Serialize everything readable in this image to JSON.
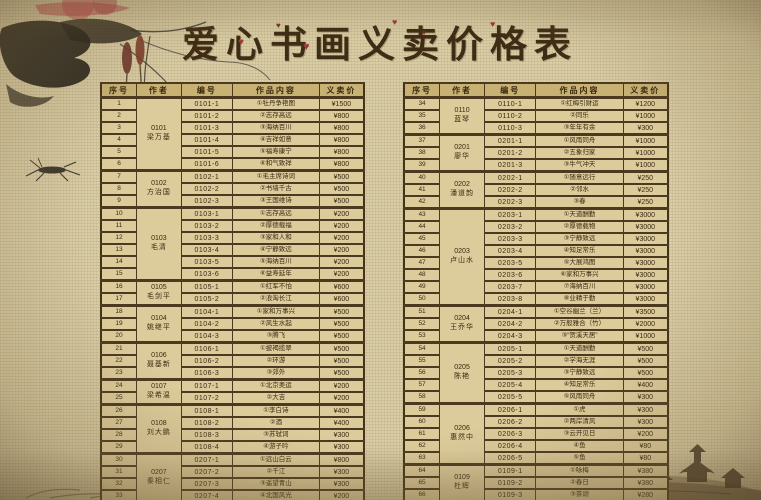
{
  "title": "爱心书画义卖价格表",
  "heart_icon": "♥",
  "headers": [
    "序号",
    "作者",
    "编号",
    "作品内容",
    "义卖价"
  ],
  "colors": {
    "paper": "#d9cda6",
    "table_border": "#4c3a20",
    "header_bg": "#c7b173",
    "cell_bg": "#dccb9b",
    "title_color": "#3f2c14",
    "heart_red": "#9e3a38",
    "ink_black": "#1e1a14",
    "blossom_red": "#b8444a"
  },
  "tables": [
    {
      "name": "left",
      "groups": [
        {
          "author_code": "0101",
          "author_name": "梁万基",
          "rows": [
            {
              "no": "1",
              "code": "0101-1",
              "content": "①牡丹争艳图",
              "price": "¥1500"
            },
            {
              "no": "2",
              "code": "0101-2",
              "content": "②志存高远",
              "price": "¥800"
            },
            {
              "no": "3",
              "code": "0101-3",
              "content": "③海纳百川",
              "price": "¥800"
            },
            {
              "no": "4",
              "code": "0101-4",
              "content": "④吉祥如意",
              "price": "¥800"
            },
            {
              "no": "5",
              "code": "0101-5",
              "content": "⑤福寿康宁",
              "price": "¥800"
            },
            {
              "no": "6",
              "code": "0101-6",
              "content": "⑥和气致祥",
              "price": "¥800"
            }
          ]
        },
        {
          "author_code": "0102",
          "author_name": "方治国",
          "rows": [
            {
              "no": "7",
              "code": "0102-1",
              "content": "①毛主席诗词",
              "price": "¥500"
            },
            {
              "no": "8",
              "code": "0102-2",
              "content": "②书墙千古",
              "price": "¥500"
            },
            {
              "no": "9",
              "code": "0102-3",
              "content": "③王国维诗",
              "price": "¥500"
            }
          ]
        },
        {
          "author_code": "0103",
          "author_name": "毛清",
          "rows": [
            {
              "no": "10",
              "code": "0103-1",
              "content": "①志存高远",
              "price": "¥200"
            },
            {
              "no": "11",
              "code": "0103-2",
              "content": "②厚德载福",
              "price": "¥200"
            },
            {
              "no": "12",
              "code": "0103-3",
              "content": "③家和人和",
              "price": "¥200"
            },
            {
              "no": "13",
              "code": "0103-4",
              "content": "④宁静致远",
              "price": "¥200"
            },
            {
              "no": "14",
              "code": "0103-5",
              "content": "⑤海纳百川",
              "price": "¥200"
            },
            {
              "no": "15",
              "code": "0103-6",
              "content": "⑥益寿延年",
              "price": "¥200"
            }
          ]
        },
        {
          "author_code": "0105",
          "author_name": "毛剑平",
          "rows": [
            {
              "no": "16",
              "code": "0105-1",
              "content": "①红军不怕",
              "price": "¥600"
            },
            {
              "no": "17",
              "code": "0105-2",
              "content": "②浪淘长江",
              "price": "¥600"
            }
          ]
        },
        {
          "author_code": "0104",
          "author_name": "姚继平",
          "rows": [
            {
              "no": "18",
              "code": "0104-1",
              "content": "①家和万事兴",
              "price": "¥500"
            },
            {
              "no": "19",
              "code": "0104-2",
              "content": "②风生水起",
              "price": "¥500"
            },
            {
              "no": "20",
              "code": "0104-3",
              "content": "③腾飞",
              "price": "¥500"
            }
          ]
        },
        {
          "author_code": "0106",
          "author_name": "聂基新",
          "rows": [
            {
              "no": "21",
              "code": "0106-1",
              "content": "①披褐揽翠",
              "price": "¥500"
            },
            {
              "no": "22",
              "code": "0106-2",
              "content": "②环游",
              "price": "¥500"
            },
            {
              "no": "23",
              "code": "0106-3",
              "content": "③郊外",
              "price": "¥500"
            }
          ]
        },
        {
          "author_code": "0107",
          "author_name": "梁希温",
          "rows": [
            {
              "no": "24",
              "code": "0107-1",
              "content": "①北京奥运",
              "price": "¥200"
            },
            {
              "no": "25",
              "code": "0107-2",
              "content": "②大吉",
              "price": "¥200"
            }
          ]
        },
        {
          "author_code": "0108",
          "author_name": "刘大鹏",
          "rows": [
            {
              "no": "26",
              "code": "0108-1",
              "content": "①李白诗",
              "price": "¥400"
            },
            {
              "no": "27",
              "code": "0108-2",
              "content": "②酒",
              "price": "¥400"
            },
            {
              "no": "28",
              "code": "0108-3",
              "content": "③苏轼词",
              "price": "¥300"
            },
            {
              "no": "29",
              "code": "0108-4",
              "content": "④游子吟",
              "price": "¥300"
            }
          ]
        },
        {
          "author_code": "0207",
          "author_name": "秦相仁",
          "rows": [
            {
              "no": "30",
              "code": "0207-1",
              "content": "①远山白云",
              "price": "¥800"
            },
            {
              "no": "31",
              "code": "0207-2",
              "content": "②千江",
              "price": "¥300"
            },
            {
              "no": "32",
              "code": "0207-3",
              "content": "③遥望青山",
              "price": "¥300"
            },
            {
              "no": "33",
              "code": "0207-4",
              "content": "④北国风光",
              "price": "¥200"
            }
          ]
        }
      ]
    },
    {
      "name": "right",
      "groups": [
        {
          "author_code": "0110",
          "author_name": "蓝琴",
          "rows": [
            {
              "no": "34",
              "code": "0110-1",
              "content": "①红梅引财运",
              "price": "¥1200"
            },
            {
              "no": "35",
              "code": "0110-2",
              "content": "②同乐",
              "price": "¥1000"
            },
            {
              "no": "36",
              "code": "0110-3",
              "content": "③年年有余",
              "price": "¥300"
            }
          ]
        },
        {
          "author_code": "0201",
          "author_name": "廖华",
          "rows": [
            {
              "no": "37",
              "code": "0201-1",
              "content": "①风雨同舟",
              "price": "¥1000"
            },
            {
              "no": "38",
              "code": "0201-2",
              "content": "②五象归家",
              "price": "¥1000"
            },
            {
              "no": "39",
              "code": "0201-3",
              "content": "③牛气冲天",
              "price": "¥1000"
            }
          ]
        },
        {
          "author_code": "0202",
          "author_name": "潘道韵",
          "rows": [
            {
              "no": "40",
              "code": "0202-1",
              "content": "①随意远行",
              "price": "¥250"
            },
            {
              "no": "41",
              "code": "0202-2",
              "content": "②邻水",
              "price": "¥250"
            },
            {
              "no": "42",
              "code": "0202-3",
              "content": "③春",
              "price": "¥250"
            }
          ]
        },
        {
          "author_code": "0203",
          "author_name": "卢山水",
          "rows": [
            {
              "no": "43",
              "code": "0203-1",
              "content": "①天道酬勤",
              "price": "¥3000"
            },
            {
              "no": "44",
              "code": "0203-2",
              "content": "②厚德载物",
              "price": "¥3000"
            },
            {
              "no": "45",
              "code": "0203-3",
              "content": "③宁静致远",
              "price": "¥3000"
            },
            {
              "no": "46",
              "code": "0203-4",
              "content": "④知足常乐",
              "price": "¥3000"
            },
            {
              "no": "47",
              "code": "0203-5",
              "content": "⑤大展鸿图",
              "price": "¥3000"
            },
            {
              "no": "48",
              "code": "0203-6",
              "content": "⑥家和万事兴",
              "price": "¥3000"
            },
            {
              "no": "49",
              "code": "0203-7",
              "content": "⑦海纳百川",
              "price": "¥3000"
            },
            {
              "no": "50",
              "code": "0203-8",
              "content": "⑧业精于勤",
              "price": "¥3000"
            }
          ]
        },
        {
          "author_code": "0204",
          "author_name": "王乔华",
          "rows": [
            {
              "no": "51",
              "code": "0204-1",
              "content": "①空谷幽兰（兰）",
              "price": "¥3500"
            },
            {
              "no": "52",
              "code": "0204-2",
              "content": "②万般雅合（竹）",
              "price": "¥2000"
            },
            {
              "no": "53",
              "code": "0204-3",
              "content": "③“贺溪天居”",
              "price": "¥1000"
            }
          ]
        },
        {
          "author_code": "0205",
          "author_name": "陈艳",
          "rows": [
            {
              "no": "54",
              "code": "0205-1",
              "content": "①天道酬勤",
              "price": "¥500"
            },
            {
              "no": "55",
              "code": "0205-2",
              "content": "②学海无涯",
              "price": "¥500"
            },
            {
              "no": "56",
              "code": "0205-3",
              "content": "③宁静致远",
              "price": "¥500"
            },
            {
              "no": "57",
              "code": "0205-4",
              "content": "④知足常乐",
              "price": "¥400"
            },
            {
              "no": "58",
              "code": "0205-5",
              "content": "⑤风雨同舟",
              "price": "¥300"
            }
          ]
        },
        {
          "author_code": "0206",
          "author_name": "惠然中",
          "rows": [
            {
              "no": "59",
              "code": "0206-1",
              "content": "①虎",
              "price": "¥300"
            },
            {
              "no": "60",
              "code": "0206-2",
              "content": "②两岸清风",
              "price": "¥300"
            },
            {
              "no": "61",
              "code": "0206-3",
              "content": "③云开见日",
              "price": "¥200"
            },
            {
              "no": "62",
              "code": "0206-4",
              "content": "④鱼",
              "price": "¥80"
            },
            {
              "no": "63",
              "code": "0206-5",
              "content": "⑤鱼",
              "price": "¥80"
            }
          ]
        },
        {
          "author_code": "0109",
          "author_name": "杜辉",
          "rows": [
            {
              "no": "64",
              "code": "0109-1",
              "content": "①咏梅",
              "price": "¥380"
            },
            {
              "no": "65",
              "code": "0109-2",
              "content": "②春日",
              "price": "¥380"
            },
            {
              "no": "66",
              "code": "0109-3",
              "content": "③茶颂",
              "price": "¥280"
            }
          ]
        }
      ]
    }
  ]
}
